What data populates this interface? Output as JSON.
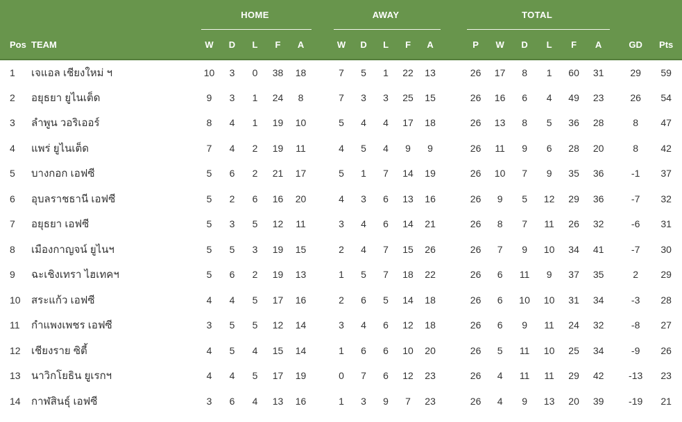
{
  "table": {
    "group_headers": {
      "home": "HOME",
      "away": "AWAY",
      "total": "TOTAL"
    },
    "columns": {
      "pos": "Pos",
      "team": "TEAM",
      "home": [
        "W",
        "D",
        "L",
        "F",
        "A"
      ],
      "away": [
        "W",
        "D",
        "L",
        "F",
        "A"
      ],
      "total": [
        "P",
        "W",
        "D",
        "L",
        "F",
        "A"
      ],
      "gd": "GD",
      "pts": "Pts"
    },
    "colors": {
      "header_green": "#68954c",
      "header_bottom_border": "#557e3c",
      "row_text": "#333333",
      "header_text": "#ffffff"
    },
    "rows": [
      {
        "pos": 1,
        "team": "เจแอล เชียงใหม่ ฯ",
        "home": [
          10,
          3,
          0,
          38,
          18
        ],
        "away": [
          7,
          5,
          1,
          22,
          13
        ],
        "total": [
          26,
          17,
          8,
          1,
          60,
          31
        ],
        "gd": 29,
        "pts": 59
      },
      {
        "pos": 2,
        "team": "อยุธยา ยูไนเต็ด",
        "home": [
          9,
          3,
          1,
          24,
          8
        ],
        "away": [
          7,
          3,
          3,
          25,
          15
        ],
        "total": [
          26,
          16,
          6,
          4,
          49,
          23
        ],
        "gd": 26,
        "pts": 54
      },
      {
        "pos": 3,
        "team": "ลำพูน วอริเออร์",
        "home": [
          8,
          4,
          1,
          19,
          10
        ],
        "away": [
          5,
          4,
          4,
          17,
          18
        ],
        "total": [
          26,
          13,
          8,
          5,
          36,
          28
        ],
        "gd": 8,
        "pts": 47
      },
      {
        "pos": 4,
        "team": "แพร่ ยูไนเต็ด",
        "home": [
          7,
          4,
          2,
          19,
          11
        ],
        "away": [
          4,
          5,
          4,
          9,
          9
        ],
        "total": [
          26,
          11,
          9,
          6,
          28,
          20
        ],
        "gd": 8,
        "pts": 42
      },
      {
        "pos": 5,
        "team": "บางกอก เอฟซี",
        "home": [
          5,
          6,
          2,
          21,
          17
        ],
        "away": [
          5,
          1,
          7,
          14,
          19
        ],
        "total": [
          26,
          10,
          7,
          9,
          35,
          36
        ],
        "gd": -1,
        "pts": 37
      },
      {
        "pos": 6,
        "team": "อุบลราชธานี เอฟซี",
        "home": [
          5,
          2,
          6,
          16,
          20
        ],
        "away": [
          4,
          3,
          6,
          13,
          16
        ],
        "total": [
          26,
          9,
          5,
          12,
          29,
          36
        ],
        "gd": -7,
        "pts": 32
      },
      {
        "pos": 7,
        "team": "อยุธยา เอฟซี",
        "home": [
          5,
          3,
          5,
          12,
          11
        ],
        "away": [
          3,
          4,
          6,
          14,
          21
        ],
        "total": [
          26,
          8,
          7,
          11,
          26,
          32
        ],
        "gd": -6,
        "pts": 31
      },
      {
        "pos": 8,
        "team": "เมืองกาญจน์ ยูไนฯ",
        "home": [
          5,
          5,
          3,
          19,
          15
        ],
        "away": [
          2,
          4,
          7,
          15,
          26
        ],
        "total": [
          26,
          7,
          9,
          10,
          34,
          41
        ],
        "gd": -7,
        "pts": 30
      },
      {
        "pos": 9,
        "team": "ฉะเชิงเทรา ไฮเทคฯ",
        "home": [
          5,
          6,
          2,
          19,
          13
        ],
        "away": [
          1,
          5,
          7,
          18,
          22
        ],
        "total": [
          26,
          6,
          11,
          9,
          37,
          35
        ],
        "gd": 2,
        "pts": 29
      },
      {
        "pos": 10,
        "team": "สระแก้ว เอฟซี",
        "home": [
          4,
          4,
          5,
          17,
          16
        ],
        "away": [
          2,
          6,
          5,
          14,
          18
        ],
        "total": [
          26,
          6,
          10,
          10,
          31,
          34
        ],
        "gd": -3,
        "pts": 28
      },
      {
        "pos": 11,
        "team": "กำแพงเพชร เอฟซี",
        "home": [
          3,
          5,
          5,
          12,
          14
        ],
        "away": [
          3,
          4,
          6,
          12,
          18
        ],
        "total": [
          26,
          6,
          9,
          11,
          24,
          32
        ],
        "gd": -8,
        "pts": 27
      },
      {
        "pos": 12,
        "team": "เชียงราย ซิตี้",
        "home": [
          4,
          5,
          4,
          15,
          14
        ],
        "away": [
          1,
          6,
          6,
          10,
          20
        ],
        "total": [
          26,
          5,
          11,
          10,
          25,
          34
        ],
        "gd": -9,
        "pts": 26
      },
      {
        "pos": 13,
        "team": "นาวิกโยธิน ยูเรกฯ",
        "home": [
          4,
          4,
          5,
          17,
          19
        ],
        "away": [
          0,
          7,
          6,
          12,
          23
        ],
        "total": [
          26,
          4,
          11,
          11,
          29,
          42
        ],
        "gd": -13,
        "pts": 23
      },
      {
        "pos": 14,
        "team": "กาฬสินธุ์ เอฟซี",
        "home": [
          3,
          6,
          4,
          13,
          16
        ],
        "away": [
          1,
          3,
          9,
          7,
          23
        ],
        "total": [
          26,
          4,
          9,
          13,
          20,
          39
        ],
        "gd": -19,
        "pts": 21
      }
    ]
  }
}
